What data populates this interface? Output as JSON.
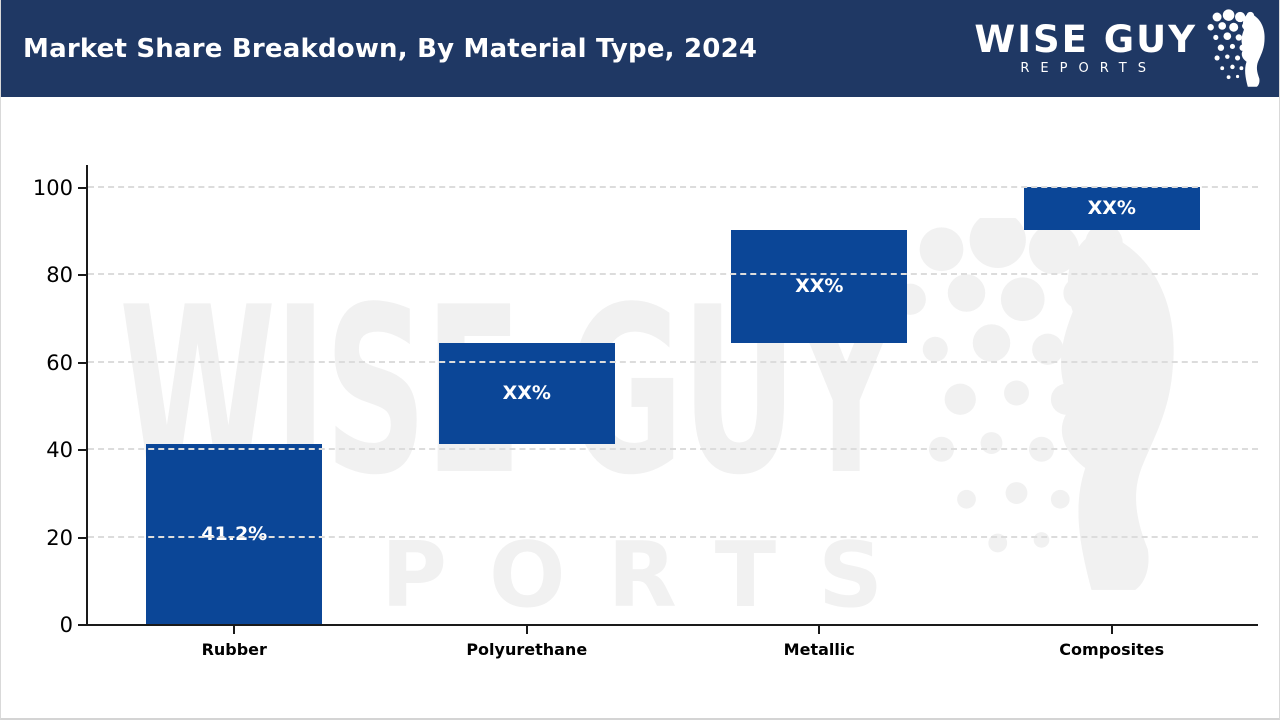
{
  "header": {
    "title": "Market Share Breakdown, By Material Type, 2024",
    "bg_color": "#1f3864",
    "logo": {
      "line1": "WISE GUY",
      "line2": "REPORTS"
    }
  },
  "watermark": {
    "line1": "WISE GUY",
    "line2": "PORTS"
  },
  "chart_data": {
    "type": "bar",
    "subtype": "waterfall",
    "title": "",
    "xlabel": "",
    "ylabel": "",
    "categories": [
      "Rubber",
      "Polyurethane",
      "Metallic",
      "Composites"
    ],
    "segments": [
      {
        "category": "Rubber",
        "start": 0,
        "end": 41.2,
        "label": "41.2%"
      },
      {
        "category": "Polyurethane",
        "start": 41.2,
        "end": 64.3,
        "label": "XX%"
      },
      {
        "category": "Metallic",
        "start": 64.3,
        "end": 90.2,
        "label": "XX%"
      },
      {
        "category": "Composites",
        "start": 90.2,
        "end": 100,
        "label": "XX%"
      }
    ],
    "y_ticks": [
      0,
      20,
      40,
      60,
      80,
      100
    ],
    "ylim": [
      0,
      105
    ],
    "grid": "horizontal-dashed",
    "grid_color": "#dcdcdc",
    "bar_color": "#0b4697",
    "bar_label_color": "#ffffff",
    "axis_color": "#1a1a1a",
    "legend": "none"
  }
}
